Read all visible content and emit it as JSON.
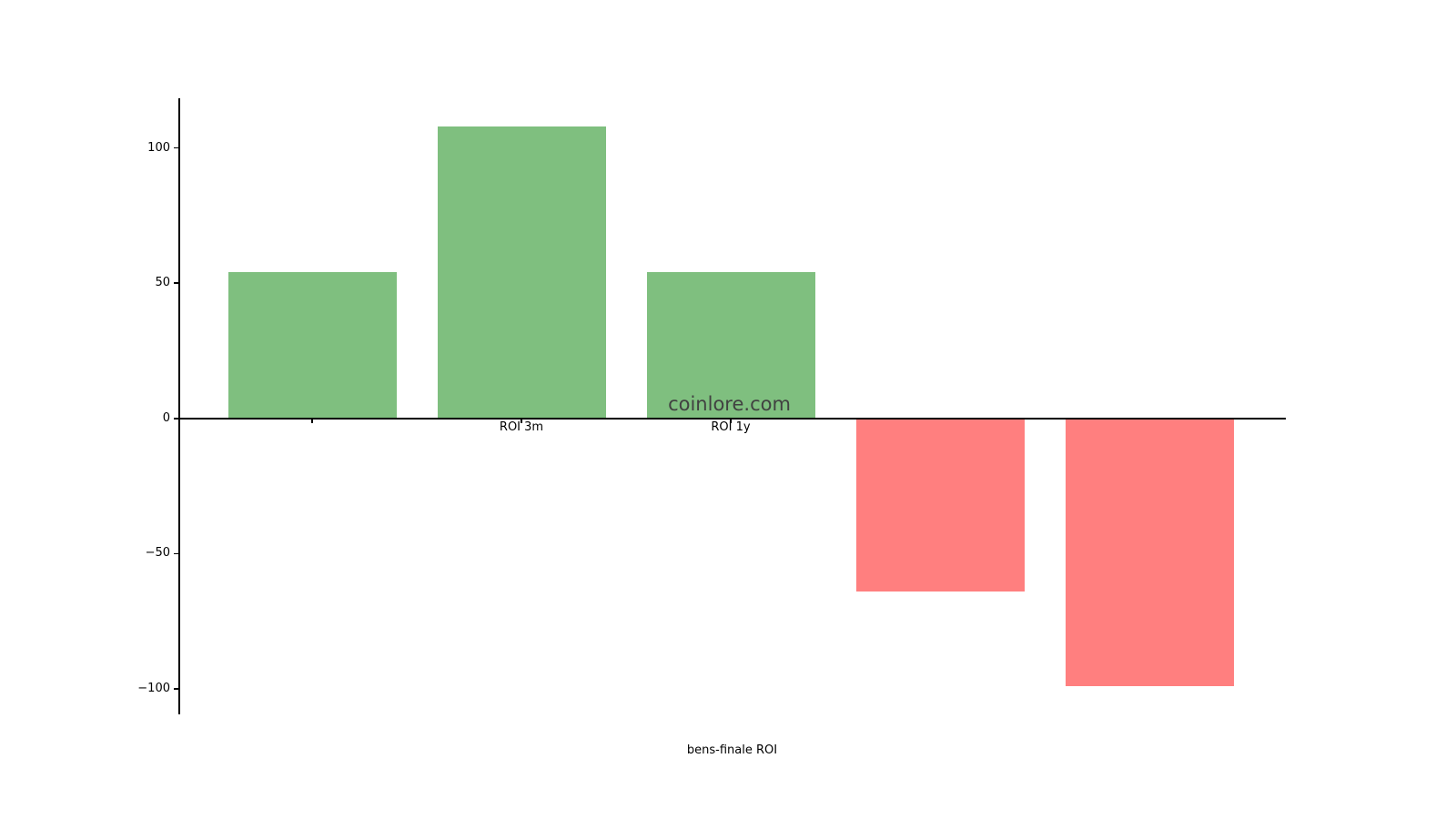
{
  "watermark": {
    "text": "coinlore.com",
    "color": "#414141"
  },
  "chart_data": {
    "type": "bar",
    "title": "bens-finale ROI",
    "categories": [
      "",
      "ROI 3m",
      "ROI 1y",
      "",
      ""
    ],
    "values": [
      54,
      108,
      54,
      -64,
      -99
    ],
    "positive_color": "#7fbf7f",
    "negative_color": "#ff7f7f",
    "y_ticks": [
      {
        "value": 100,
        "label": "100"
      },
      {
        "value": 50,
        "label": "50"
      },
      {
        "value": 0,
        "label": "0"
      },
      {
        "value": -50,
        "label": "−50"
      },
      {
        "value": -100,
        "label": "−100"
      }
    ],
    "ylim": [
      -109.4,
      118.4
    ],
    "xlabel": "",
    "ylabel": "",
    "grid": false,
    "legend": "none",
    "axis_color": "#000000"
  }
}
